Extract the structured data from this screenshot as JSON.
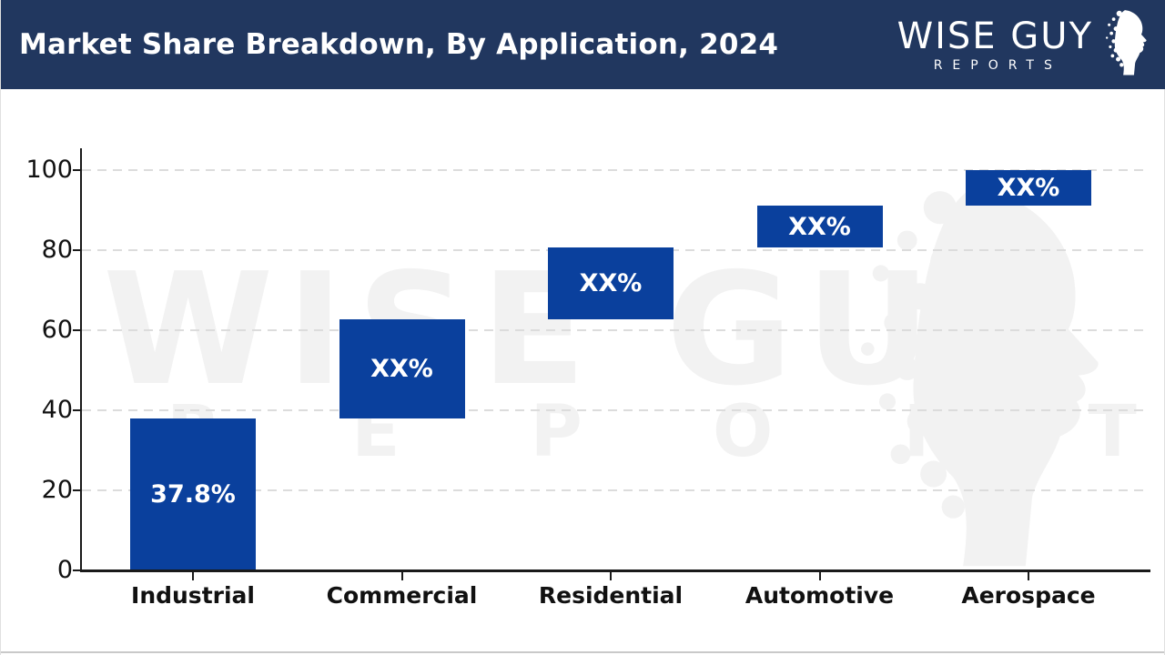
{
  "header": {
    "title": "Market Share Breakdown, By Application, 2024",
    "background_color": "#21375f",
    "logo": {
      "line1": "WISE GUY",
      "line2": "REPORTS",
      "face_icon": "dotted-head-profile"
    }
  },
  "watermark": {
    "line1": "WISE GUY",
    "line2": "R E P O R T S",
    "color": "#f2f2f2"
  },
  "chart_data": {
    "type": "bar",
    "subtype": "waterfall",
    "title": "Market Share Breakdown, By Application, 2024",
    "categories": [
      "Industrial",
      "Commercial",
      "Residential",
      "Automotive",
      "Aerospace"
    ],
    "segments": [
      {
        "category": "Industrial",
        "start": 0,
        "end": 37.8,
        "label": "37.8%"
      },
      {
        "category": "Commercial",
        "start": 37.8,
        "end": 62.7,
        "label": "XX%"
      },
      {
        "category": "Residential",
        "start": 62.7,
        "end": 80.6,
        "label": "XX%"
      },
      {
        "category": "Automotive",
        "start": 80.6,
        "end": 91.0,
        "label": "XX%"
      },
      {
        "category": "Aerospace",
        "start": 91.0,
        "end": 100.0,
        "label": "XX%"
      }
    ],
    "yticks": [
      0,
      20,
      40,
      60,
      80,
      100
    ],
    "ylim": [
      0,
      105
    ],
    "xlabel": "",
    "ylabel": "",
    "grid": "horizontal-dashed",
    "legend": "none",
    "bar_color": "#0a409d",
    "bar_label_color": "#ffffff",
    "gridline_color": "#dcdcdc",
    "axis_color": "#1a1a1a"
  }
}
